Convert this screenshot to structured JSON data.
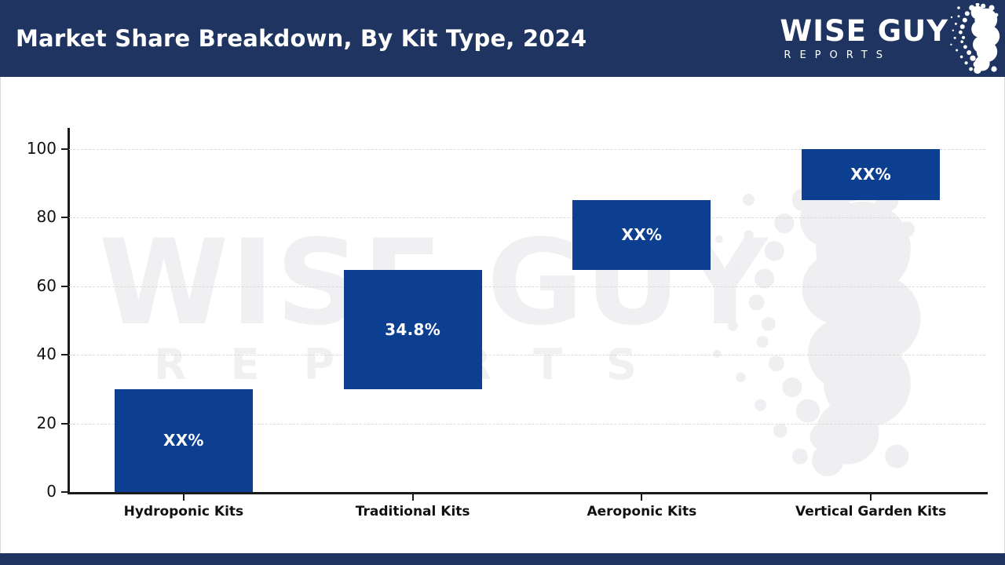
{
  "page": {
    "bg_color": "#ffffff",
    "border_color": "#d9d9d9"
  },
  "header": {
    "title": "Market Share Breakdown, By Kit Type, 2024",
    "bg_color": "#1f3460",
    "text_color": "#ffffff",
    "logo": {
      "line1": "WISE GUY",
      "line2": "REPORTS",
      "icon": "dotted-face-profile-icon"
    }
  },
  "footer": {
    "bg_color": "#1f3460"
  },
  "watermark": {
    "line1": "WISE GUY",
    "line2": "REPORTS",
    "text_color": "#f0f0f2",
    "icon": "dotted-face-profile-icon"
  },
  "chart_data": {
    "type": "bar",
    "subtype": "floating-waterfall",
    "title": "Market Share Breakdown, By Kit Type, 2024",
    "categories": [
      "Hydroponic Kits",
      "Traditional Kits",
      "Aeroponic Kits",
      "Vertical Garden Kits"
    ],
    "series": [
      {
        "name": "Market Share (%)",
        "segments": [
          {
            "category": "Hydroponic Kits",
            "start": 0,
            "end": 30,
            "label": "XX%"
          },
          {
            "category": "Traditional Kits",
            "start": 30,
            "end": 64.8,
            "label": "34.8%"
          },
          {
            "category": "Aeroponic Kits",
            "start": 64.8,
            "end": 85,
            "label": "XX%"
          },
          {
            "category": "Vertical Garden Kits",
            "start": 85,
            "end": 100,
            "label": "XX%"
          }
        ]
      }
    ],
    "xlabel": "",
    "ylabel": "",
    "ylim": [
      0,
      105.6
    ],
    "yticks": [
      0,
      20,
      40,
      60,
      80,
      100
    ],
    "grid": "horizontal-dashed",
    "legend": "none",
    "bar_color": "#0c3f90",
    "bar_label_color": "#ffffff",
    "axis_color": "#1a1a1a"
  }
}
